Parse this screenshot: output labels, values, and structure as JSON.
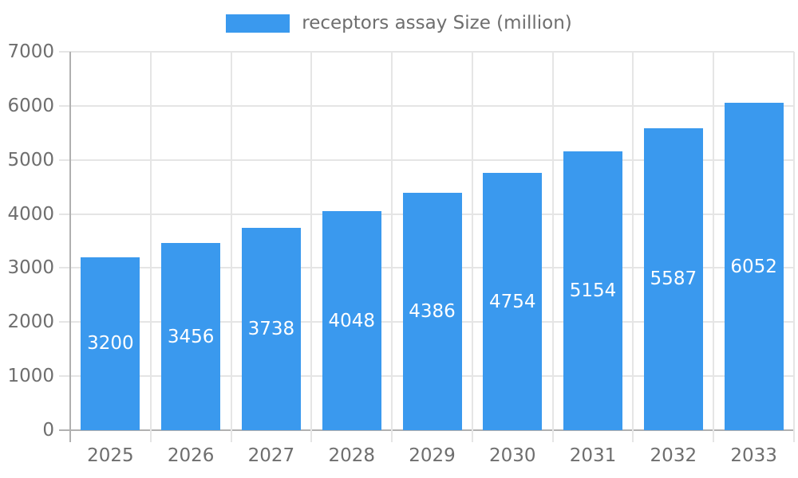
{
  "legend": {
    "label": "receptors assay Size (million)"
  },
  "chart_data": {
    "type": "bar",
    "title": "",
    "categories": [
      "2025",
      "2026",
      "2027",
      "2028",
      "2029",
      "2030",
      "2031",
      "2032",
      "2033"
    ],
    "series": [
      {
        "name": "receptors assay Size (million)",
        "values": [
          3200,
          3456,
          3738,
          4048,
          4386,
          4754,
          5154,
          5587,
          6052
        ],
        "color": "#3A99EE"
      }
    ],
    "xlabel": "",
    "ylabel": "",
    "ylim": [
      0,
      7000
    ],
    "yticks": [
      0,
      1000,
      2000,
      3000,
      4000,
      5000,
      6000,
      7000
    ],
    "grid": true,
    "legend_position": "top",
    "value_labels_position": "inside-center",
    "value_label_color": "#FFFFFF"
  },
  "colors": {
    "bar": "#3A99EE",
    "grid_line": "#E5E5E5",
    "axis_line": "#B0B0B0",
    "tick_label": "#6E6E6E",
    "background": "#FFFFFF"
  }
}
